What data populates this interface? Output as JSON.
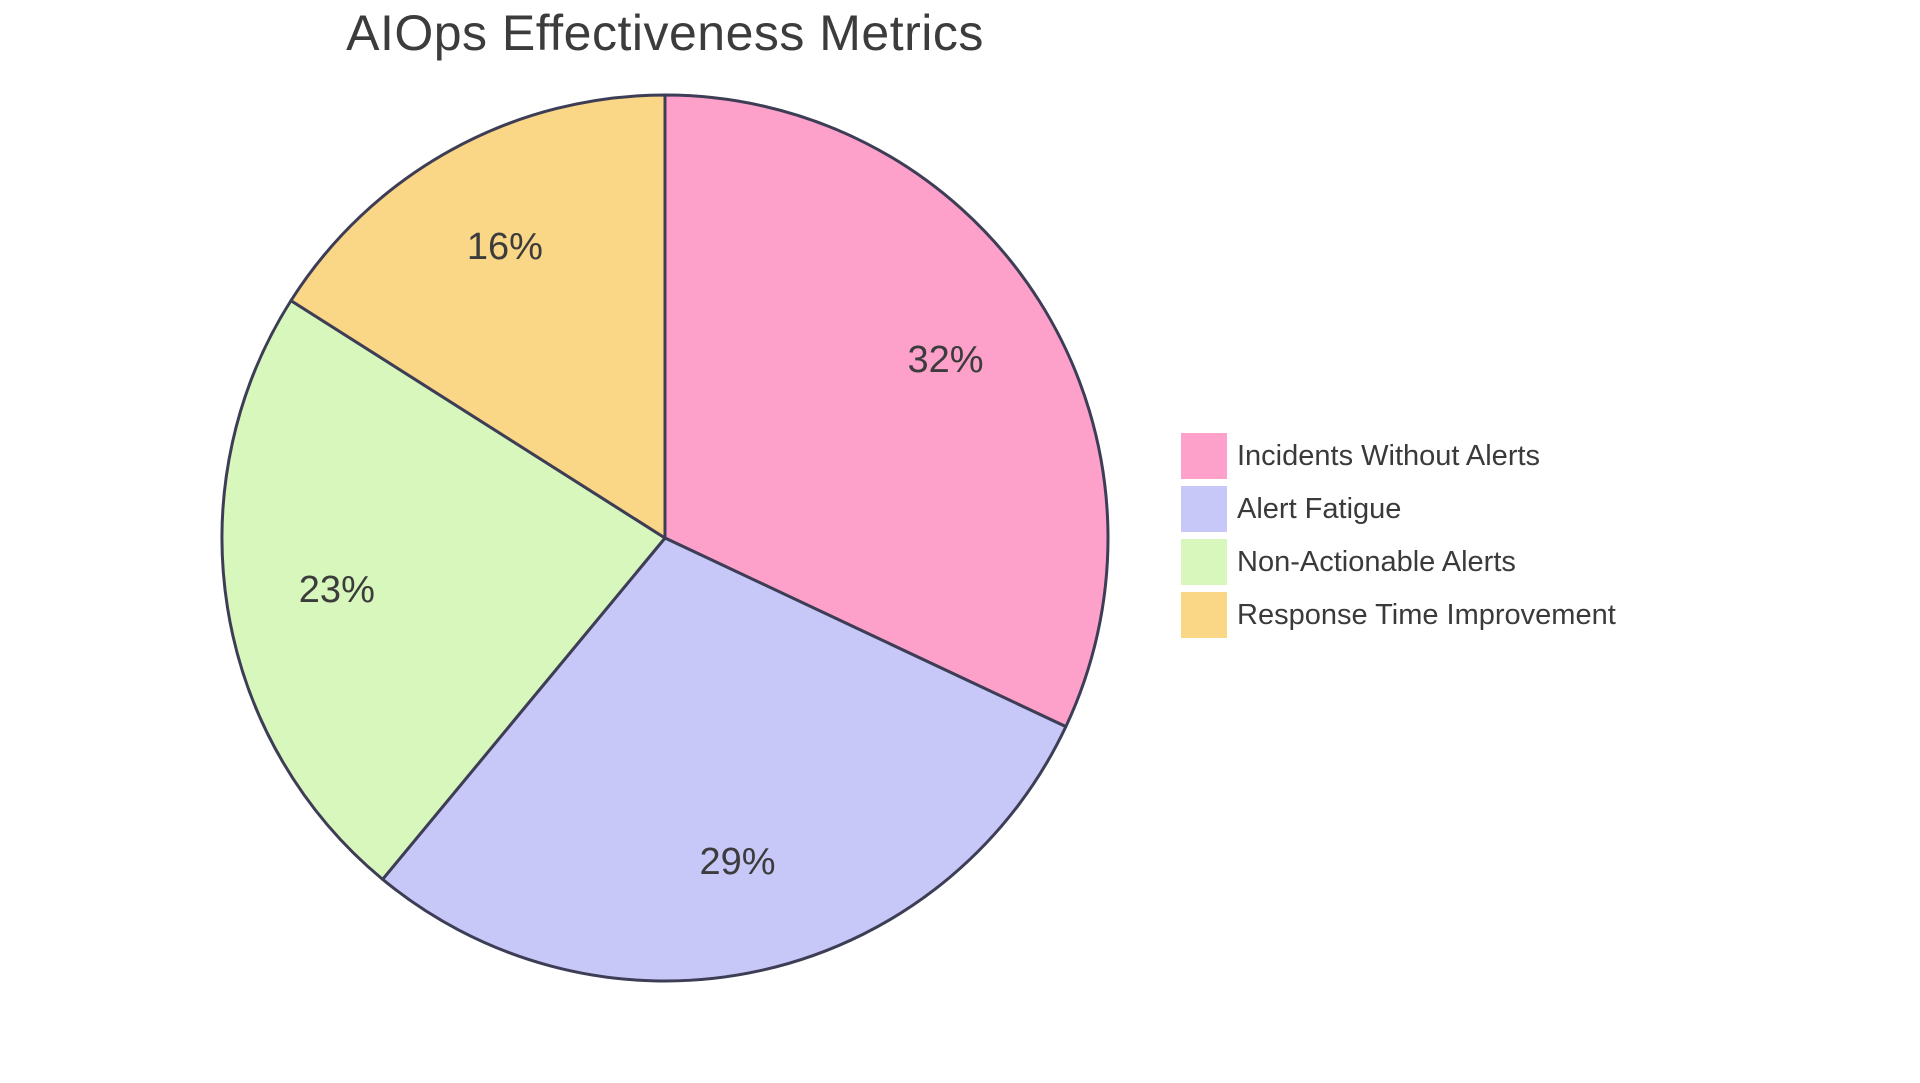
{
  "title": "AIOps Effectiveness Metrics",
  "chart_data": {
    "type": "pie",
    "title": "AIOps Effectiveness Metrics",
    "start_angle_deg_from_top": 0,
    "direction": "clockwise",
    "legend_position": "right",
    "background_color": "#FFFFFF",
    "stroke_color": "#3D3D56",
    "stroke_width": 3,
    "title_color": "#3C3C3C",
    "percent_label_color": "#3C3C3C",
    "legend_text_color": "#3A3A3A",
    "slices": [
      {
        "label": "Incidents Without Alerts",
        "value": 32,
        "percent_label": "32%",
        "color": "#FDA1CB"
      },
      {
        "label": "Alert Fatigue",
        "value": 29,
        "percent_label": "29%",
        "color": "#C7C8F8"
      },
      {
        "label": "Non-Actionable Alerts",
        "value": 23,
        "percent_label": "23%",
        "color": "#D8F7BD"
      },
      {
        "label": "Response Time Improvement",
        "value": 16,
        "percent_label": "16%",
        "color": "#FAD687"
      }
    ]
  }
}
